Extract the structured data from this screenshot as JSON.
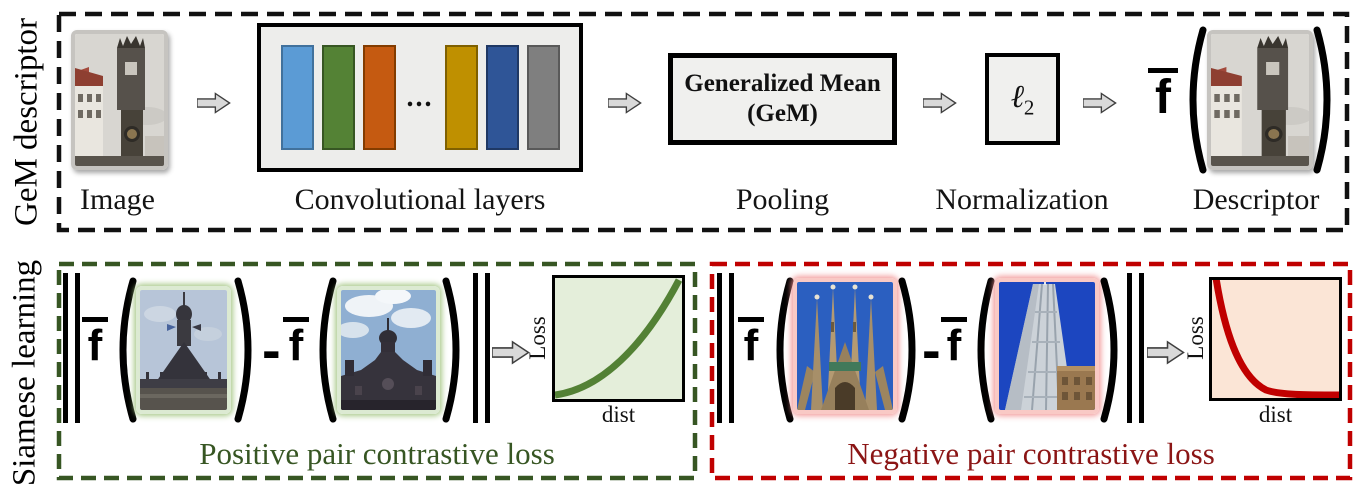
{
  "colors": {
    "gem_box_border": "#111111",
    "positive_box_border": "#375623",
    "negative_box_border": "#C00000",
    "positive_text": "#375623",
    "negative_text": "#8B1515",
    "positive_curve": "#538135",
    "negative_curve": "#C00000",
    "positive_plot_bg": "#E4EEDA",
    "negative_plot_bg": "#FBE5D6",
    "arrow_fill": "#D9D9D9",
    "arrow_stroke": "#3F3F3F"
  },
  "symbols": {
    "f": "f",
    "minus": "-",
    "norm": "‖"
  },
  "gem_section": {
    "side_label": "GeM descriptor",
    "image_label": "Image",
    "conv_label": "Convolutional layers",
    "conv_dots": "...",
    "dots_after_index": 3,
    "conv_layers": [
      {
        "fill": "#5B9BD5",
        "stroke": "#41719C"
      },
      {
        "fill": "#548235",
        "stroke": "#375623"
      },
      {
        "fill": "#C55A11",
        "stroke": "#833C00"
      },
      {
        "fill": "#BF9000",
        "stroke": "#7F6000"
      },
      {
        "fill": "#2F5597",
        "stroke": "#1F3864"
      },
      {
        "fill": "#7F7F7F",
        "stroke": "#595959"
      }
    ],
    "pooling_box": {
      "line1": "Generalized Mean",
      "line2": "(GeM)"
    },
    "pooling_label": "Pooling",
    "normalization_symbol": "ℓ",
    "normalization_sub": "2",
    "normalization_label": "Normalization",
    "descriptor_label": "Descriptor"
  },
  "siamese_section": {
    "side_label": "Siamese learning",
    "positive": {
      "caption": "Positive pair contrastive loss",
      "plot": {
        "ylabel": "Loss",
        "xlabel": "dist",
        "curve": "increasing-convex"
      }
    },
    "negative": {
      "caption": "Negative pair contrastive loss",
      "plot": {
        "ylabel": "Loss",
        "xlabel": "dist",
        "curve": "decreasing-hinge-to-zero"
      }
    }
  }
}
